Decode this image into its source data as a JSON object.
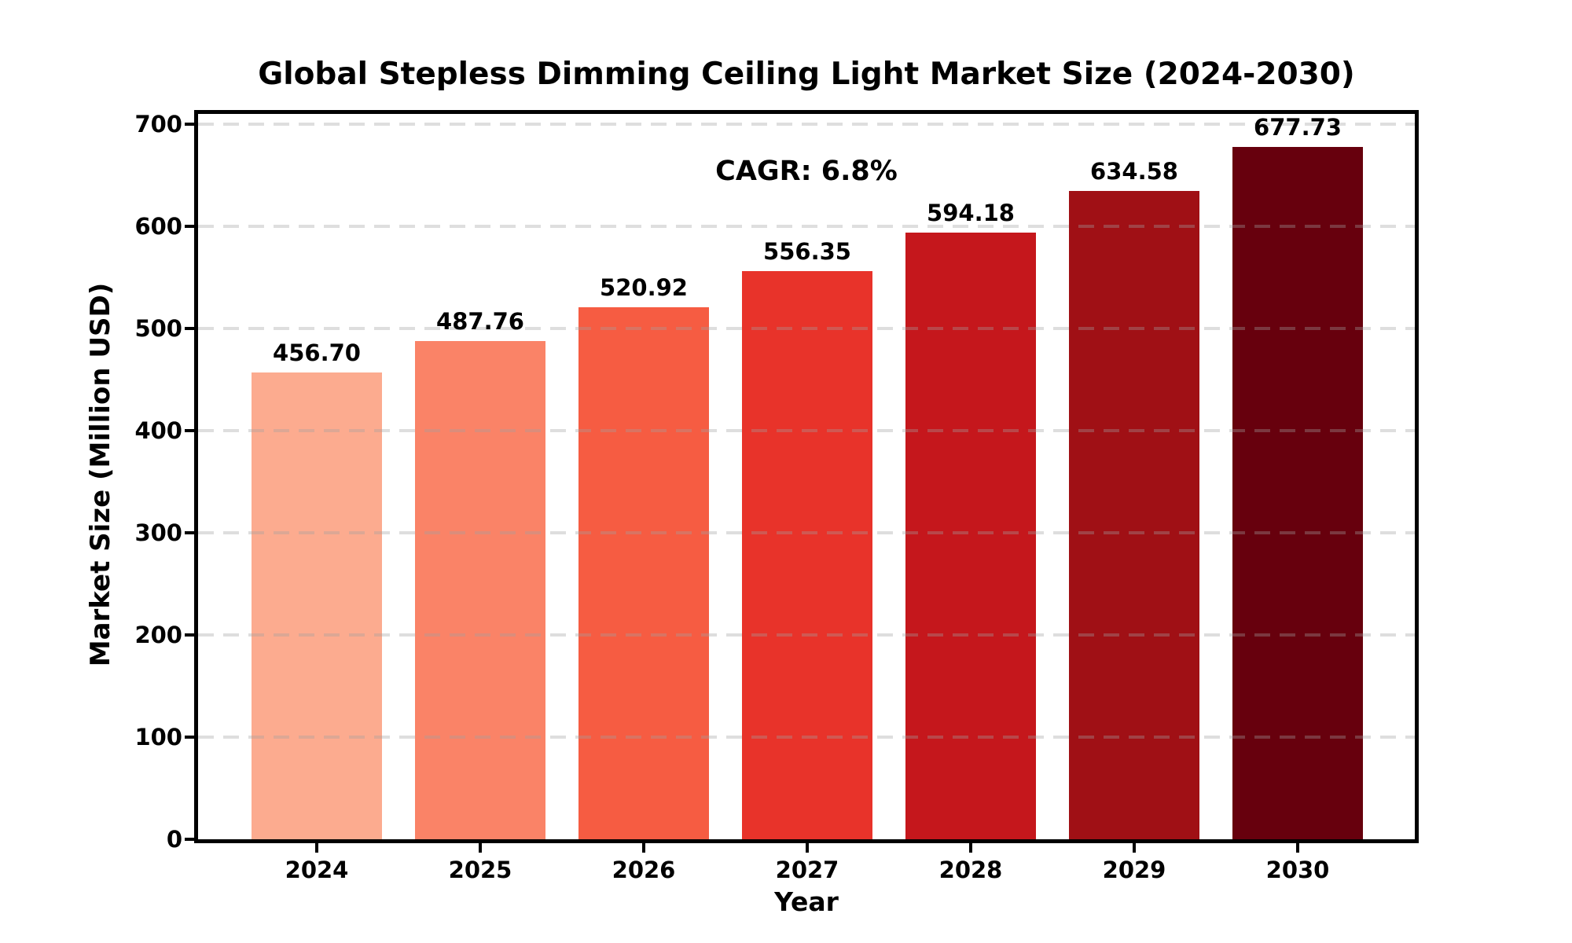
{
  "chart_data": {
    "type": "bar",
    "title": "Global Stepless Dimming Ceiling Light Market Size (2024-2030)",
    "annotation": "CAGR: 6.8%",
    "xlabel": "Year",
    "ylabel": "Market Size (Million USD)",
    "categories": [
      "2024",
      "2025",
      "2026",
      "2027",
      "2028",
      "2029",
      "2030"
    ],
    "values": [
      456.7,
      487.76,
      520.92,
      556.35,
      594.18,
      634.58,
      677.73
    ],
    "value_labels": [
      "456.70",
      "487.76",
      "520.92",
      "556.35",
      "594.18",
      "634.58",
      "677.73"
    ],
    "bar_colors": [
      "#FCAB8F",
      "#FA8367",
      "#F65C42",
      "#E8332A",
      "#C5171C",
      "#A01015",
      "#67000D"
    ],
    "ylim": [
      0,
      712
    ],
    "yticks": [
      0,
      100,
      200,
      300,
      400,
      500,
      600,
      700
    ],
    "ytick_labels": [
      "0",
      "100",
      "200",
      "300",
      "400",
      "500",
      "600",
      "700"
    ],
    "grid": "dashed horizontal, light gray, drawn over bars",
    "legend": "none",
    "background_color": "#ffffff",
    "spine_color": "#000000"
  }
}
